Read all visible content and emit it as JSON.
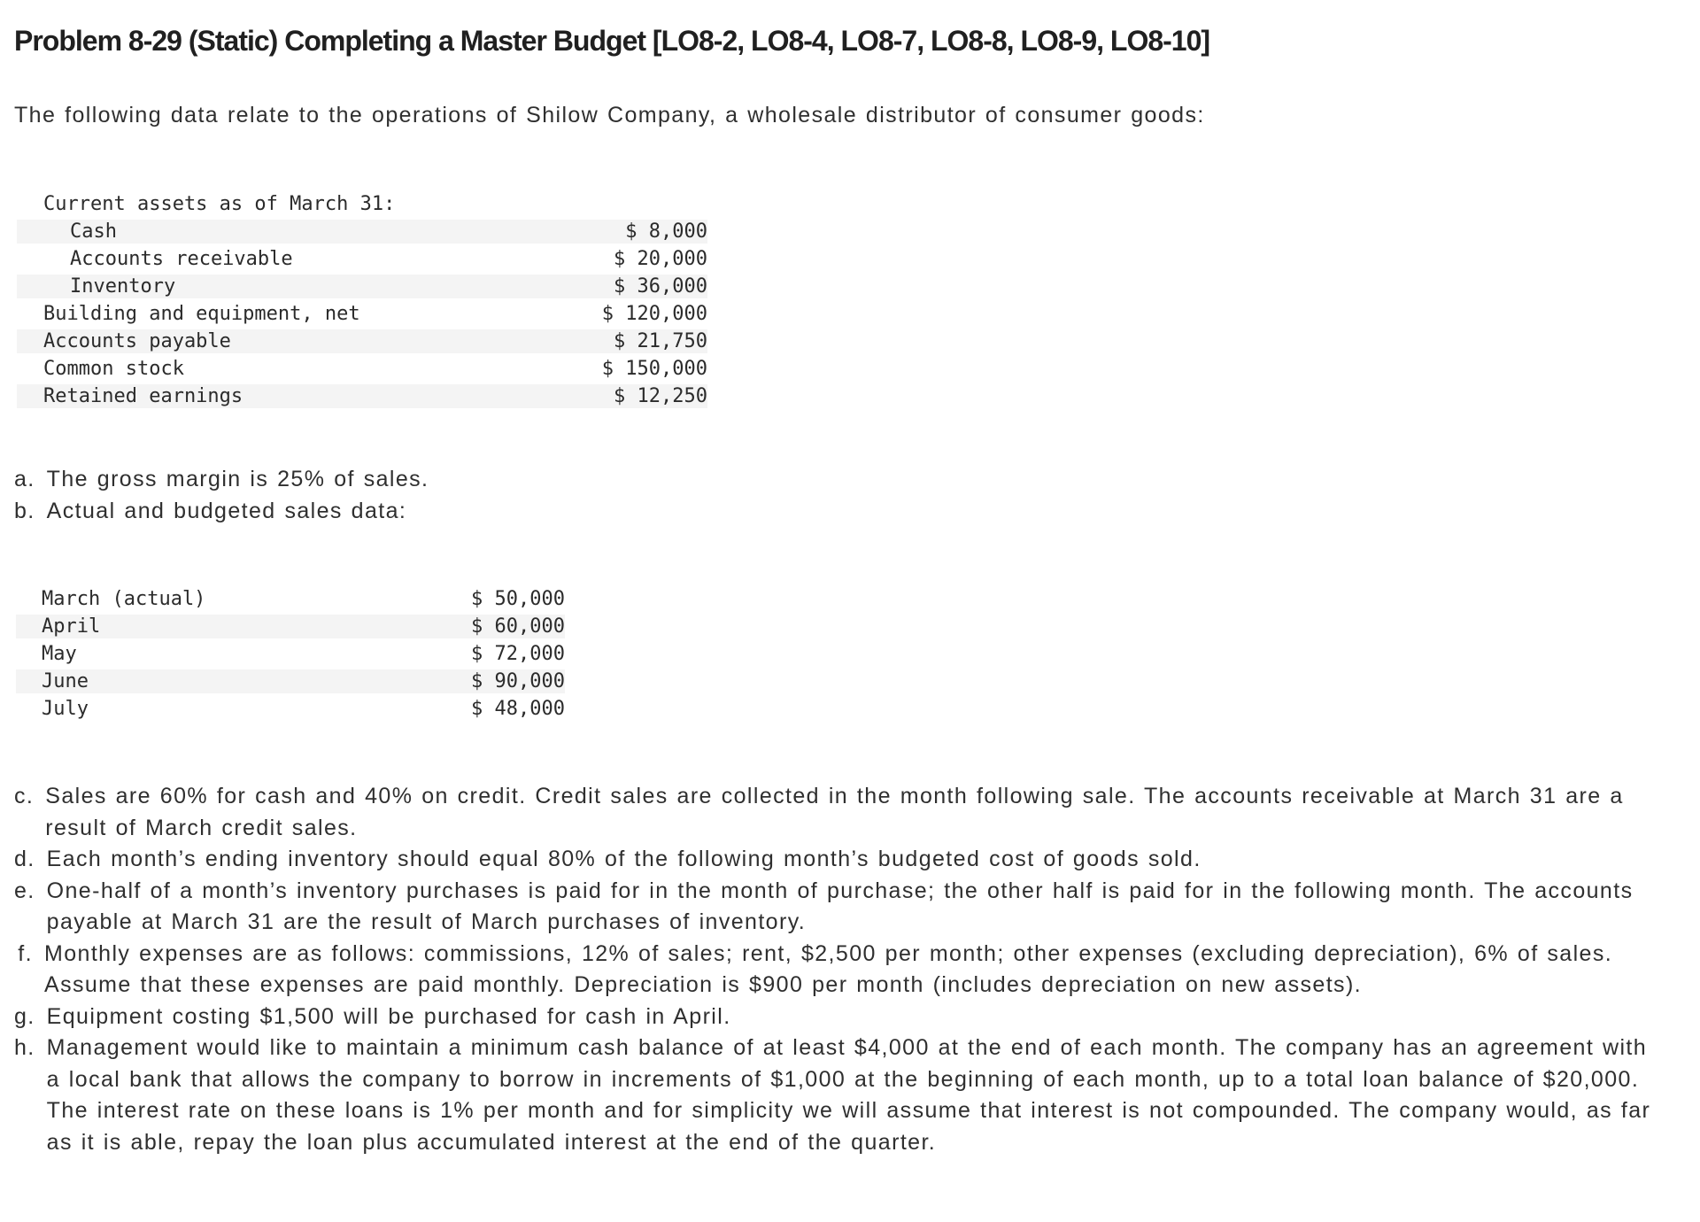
{
  "title": "Problem 8-29 (Static) Completing a Master Budget [LO8-2, LO8-4, LO8-7, LO8-8, LO8-9, LO8-10]",
  "intro": "The following data relate to the operations of Shilow Company, a wholesale distributor of consumer goods:",
  "current_assets_table": {
    "header": "Current assets as of March 31:",
    "rows": [
      {
        "label": "Cash",
        "value": "$ 8,000",
        "indent": 2,
        "shaded": true
      },
      {
        "label": "Accounts receivable",
        "value": "$ 20,000",
        "indent": 2,
        "shaded": false
      },
      {
        "label": "Inventory",
        "value": "$ 36,000",
        "indent": 2,
        "shaded": true
      },
      {
        "label": "Building and equipment, net",
        "value": "$ 120,000",
        "indent": 0,
        "shaded": false
      },
      {
        "label": "Accounts payable",
        "value": "$ 21,750",
        "indent": 0,
        "shaded": true
      },
      {
        "label": "Common stock",
        "value": "$ 150,000",
        "indent": 0,
        "shaded": false
      },
      {
        "label": "Retained earnings",
        "value": "$ 12,250",
        "indent": 0,
        "shaded": true
      }
    ]
  },
  "list_ab": [
    {
      "marker": "a.",
      "text": "The gross margin is 25% of sales."
    },
    {
      "marker": "b.",
      "text": "Actual and budgeted sales data:"
    }
  ],
  "sales_table": {
    "rows": [
      {
        "label": "March (actual)",
        "value": "$ 50,000",
        "shaded": false
      },
      {
        "label": "April",
        "value": "$ 60,000",
        "shaded": true
      },
      {
        "label": "May",
        "value": "$ 72,000",
        "shaded": false
      },
      {
        "label": "June",
        "value": "$ 90,000",
        "shaded": true
      },
      {
        "label": "July",
        "value": "$ 48,000",
        "shaded": false
      }
    ]
  },
  "list_ch": [
    {
      "marker": "c.",
      "text": "Sales are 60% for cash and 40% on credit. Credit sales are collected in the month following sale. The accounts receivable at March 31 are a result of March credit sales."
    },
    {
      "marker": "d.",
      "text": "Each month’s ending inventory should equal 80% of the following month’s budgeted cost of goods sold."
    },
    {
      "marker": "e.",
      "text": "One-half of a month’s inventory purchases is paid for in the month of purchase; the other half is paid for in the following month. The accounts payable at March 31 are the result of March purchases of inventory."
    },
    {
      "marker": "f.",
      "text": "Monthly expenses are as follows: commissions, 12% of sales; rent, $2,500 per month; other expenses (excluding depreciation), 6% of sales. Assume that these expenses are paid monthly. Depreciation is $900 per month (includes depreciation on new assets)."
    },
    {
      "marker": "g.",
      "text": "Equipment costing $1,500 will be purchased for cash in April."
    },
    {
      "marker": "h.",
      "text": "Management would like to maintain a minimum cash balance of at least $4,000 at the end of each month. The company has an agreement with a local bank that allows the company to borrow in increments of $1,000 at the beginning of each month, up to a total loan balance of $20,000. The interest rate on these loans is 1% per month and for simplicity we will assume that interest is not compounded. The company would, as far as it is able, repay the loan plus accumulated interest at the end of the quarter."
    }
  ],
  "colors": {
    "stripe": "#f4f4f4",
    "body_text": "#2f2f2f",
    "title_text": "#202020",
    "mono_text": "#2b2b2b"
  }
}
